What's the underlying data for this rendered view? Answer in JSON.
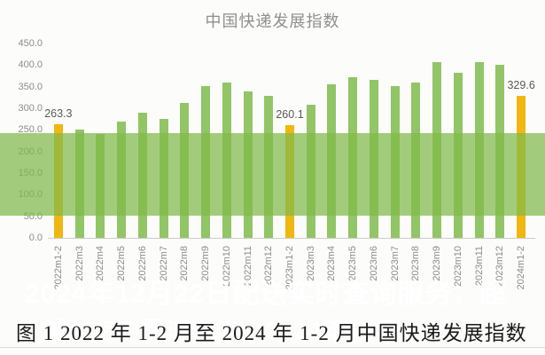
{
  "page": {
    "caption": "图 1  2022 年 1-2 月至 2024 年 1-2 月中国快递发展指数"
  },
  "overlay": {
    "line1": "2024年12月22日配送实时查询服务，超",
    "line2": "越时空的配送之旅，2024年12月22日",
    "band_color": "rgba(128,186,74,0.72)",
    "text_color": "#ffffff"
  },
  "chart_data": {
    "type": "bar",
    "title": "中国快递发展指数",
    "xlabel": "",
    "ylabel": "",
    "ylim": [
      0,
      450
    ],
    "ytick_step": 50,
    "ytick_format_decimals": 1,
    "grid": false,
    "legend": "none",
    "categories": [
      "2022m1-2",
      "2022m3",
      "2022m4",
      "2022m5",
      "2022m6",
      "2022m7",
      "2022m8",
      "2022m9",
      "2022m10",
      "2022m11",
      "2022m12",
      "2023m1-2",
      "2023m3",
      "2023m4",
      "2023m5",
      "2023m6",
      "2023m7",
      "2023m8",
      "2023m9",
      "2023m10",
      "2023m11",
      "2023m12",
      "2024m1-2"
    ],
    "values": [
      263.3,
      250,
      241,
      270,
      289,
      276,
      312,
      352,
      359,
      340,
      328,
      260.1,
      309,
      356,
      371,
      365,
      352,
      360,
      406,
      382,
      406,
      400,
      329.6
    ],
    "highlight_indices": [
      0,
      11,
      22
    ],
    "point_labels": [
      {
        "index": 0,
        "text": "263.3"
      },
      {
        "index": 11,
        "text": "260.1"
      },
      {
        "index": 22,
        "text": "329.6"
      }
    ],
    "colors": {
      "bar": "#92c566",
      "highlight_bar": "#efb712",
      "axis_line": "#cbcbcb",
      "tick_text": "#8c8c8c",
      "label_text": "#595959",
      "title_text": "#8f8f8f"
    }
  }
}
